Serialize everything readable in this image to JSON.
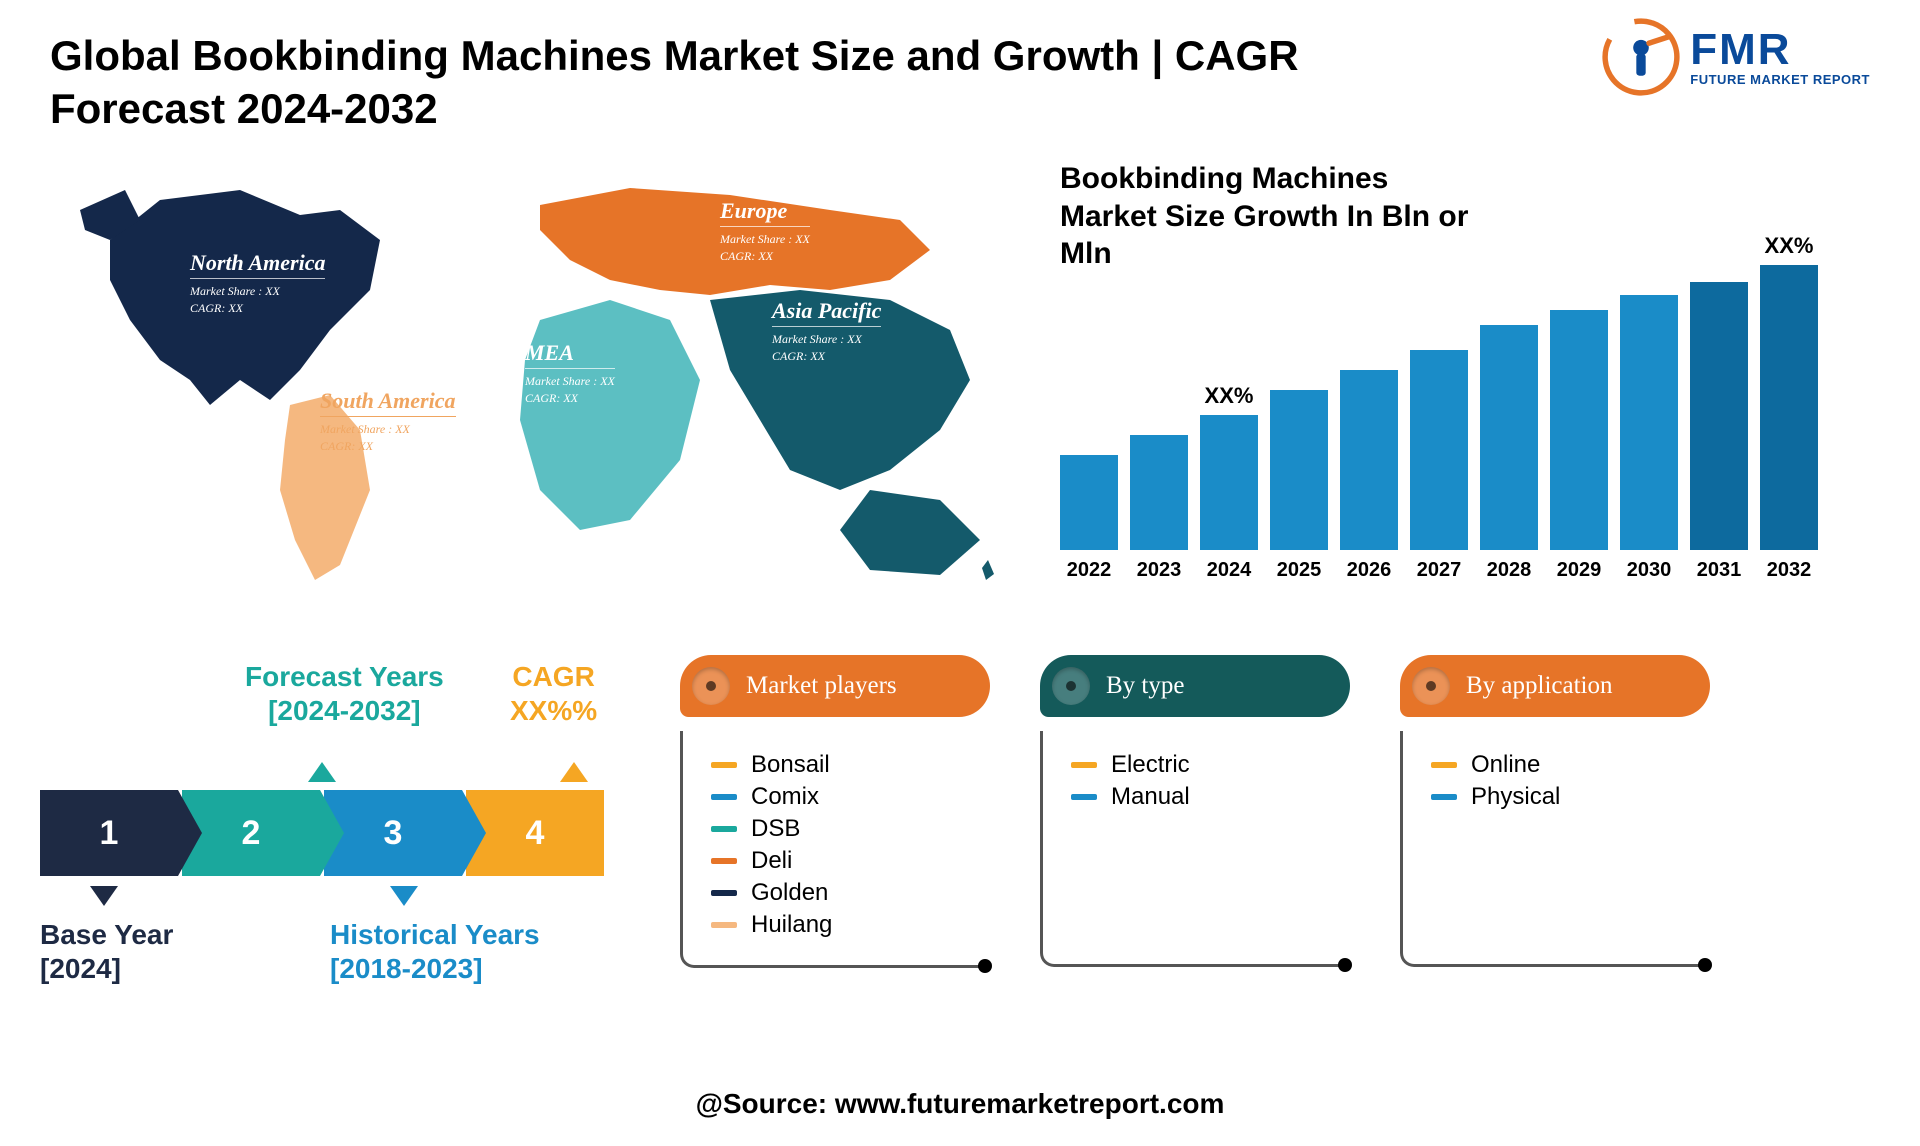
{
  "title": "Global Bookbinding Machines Market Size and Growth | CAGR Forecast 2024-2032",
  "logo": {
    "text": "FMR",
    "subtitle": "FUTURE MARKET REPORT",
    "icon_color": "#e67428",
    "text_color": "#0a4a9a"
  },
  "map": {
    "regions": [
      {
        "id": "north_america",
        "name": "North America",
        "line1": "Market Share : XX",
        "line2": "CAGR: XX",
        "color": "#14284a"
      },
      {
        "id": "south_america",
        "name": "South America",
        "line1": "Market Share : XX",
        "line2": "CAGR: XX",
        "color": "#f5b880"
      },
      {
        "id": "europe",
        "name": "Europe",
        "line1": "Market Share : XX",
        "line2": "CAGR: XX",
        "color": "#e67428"
      },
      {
        "id": "mea",
        "name": "MEA",
        "line1": "Market Share : XX",
        "line2": "CAGR: XX",
        "color": "#5cbfc2"
      },
      {
        "id": "asia_pacific",
        "name": "Asia Pacific",
        "line1": "Market Share : XX",
        "line2": "CAGR: XX",
        "color": "#145a6b"
      }
    ]
  },
  "chart": {
    "type": "bar",
    "title": "Bookbinding Machines Market Size Growth In Bln or Mln",
    "categories": [
      "2022",
      "2023",
      "2024",
      "2025",
      "2026",
      "2027",
      "2028",
      "2029",
      "2030",
      "2031",
      "2032"
    ],
    "values": [
      95,
      115,
      135,
      160,
      180,
      200,
      225,
      240,
      255,
      268,
      285
    ],
    "ylim": [
      0,
      300
    ],
    "bar_color": "#1a8cc8",
    "bar_color_alt": "#0d6a9e",
    "alt_indices": [
      9,
      10
    ],
    "annotations": [
      {
        "index": 2,
        "text": "XX%"
      },
      {
        "index": 10,
        "text": "XX%"
      }
    ],
    "label_fontsize": 20,
    "background_color": "#ffffff"
  },
  "timeline": {
    "forecast": {
      "label": "Forecast Years",
      "range": "[2024-2032]",
      "color": "#1aa89d"
    },
    "cagr": {
      "label": "CAGR",
      "value": "XX%%",
      "color": "#f5a623"
    },
    "base": {
      "label": "Base Year",
      "range": "[2024]",
      "color": "#1e2a44"
    },
    "historical": {
      "label": "Historical Years",
      "range": "[2018-2023]",
      "color": "#1a8cc8"
    },
    "steps": [
      "1",
      "2",
      "3",
      "4"
    ],
    "step_colors": [
      "#1e2a44",
      "#1aa89d",
      "#1a8cc8",
      "#f5a623"
    ]
  },
  "sections": [
    {
      "title": "Market players",
      "pill_color": "#e67428",
      "items": [
        {
          "label": "Bonsail",
          "color": "#f5a623"
        },
        {
          "label": "Comix",
          "color": "#1a8cc8"
        },
        {
          "label": "DSB",
          "color": "#1aa89d"
        },
        {
          "label": "Deli",
          "color": "#e67428"
        },
        {
          "label": "Golden",
          "color": "#14284a"
        },
        {
          "label": "Huilang",
          "color": "#f5b880"
        }
      ]
    },
    {
      "title": "By type",
      "pill_color": "#145a5a",
      "items": [
        {
          "label": "Electric",
          "color": "#f5a623"
        },
        {
          "label": "Manual",
          "color": "#1a8cc8"
        }
      ]
    },
    {
      "title": "By application",
      "pill_color": "#e67428",
      "items": [
        {
          "label": "Online",
          "color": "#f5a623"
        },
        {
          "label": "Physical",
          "color": "#1a8cc8"
        }
      ]
    }
  ],
  "source": "@Source: www.futuremarketreport.com"
}
